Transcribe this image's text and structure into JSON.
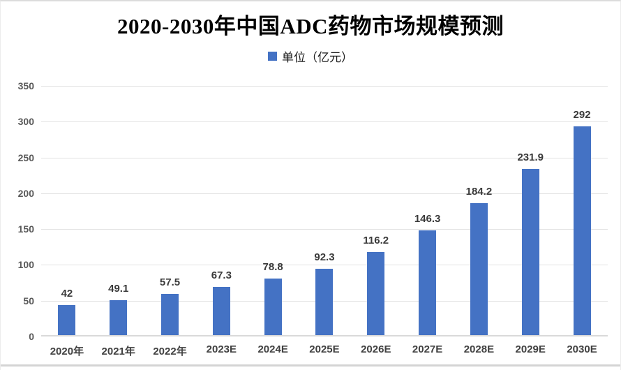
{
  "chart": {
    "colors": {
      "bar": "#4472C4",
      "gridline": "#e2e2e2",
      "axis_line": "#d9d9d9",
      "title_text": "#000000"
    }
  },
  "chart_data": {
    "type": "bar",
    "title": "2020-2030年中国ADC药物市场规模预测",
    "legend": [
      "单位（亿元）"
    ],
    "legend_position": "top",
    "categories": [
      "2020年",
      "2021年",
      "2022年",
      "2023E",
      "2024E",
      "2025E",
      "2026E",
      "2027E",
      "2028E",
      "2029E",
      "2030E"
    ],
    "values": [
      42,
      49.1,
      57.5,
      67.3,
      78.8,
      92.3,
      116.2,
      146.3,
      184.2,
      231.9,
      292
    ],
    "xlabel": "",
    "ylabel": "",
    "ylim": [
      0,
      350
    ],
    "yticks": [
      0,
      50,
      100,
      150,
      200,
      250,
      300,
      350
    ],
    "ytick_interval": 50,
    "grid": true
  }
}
